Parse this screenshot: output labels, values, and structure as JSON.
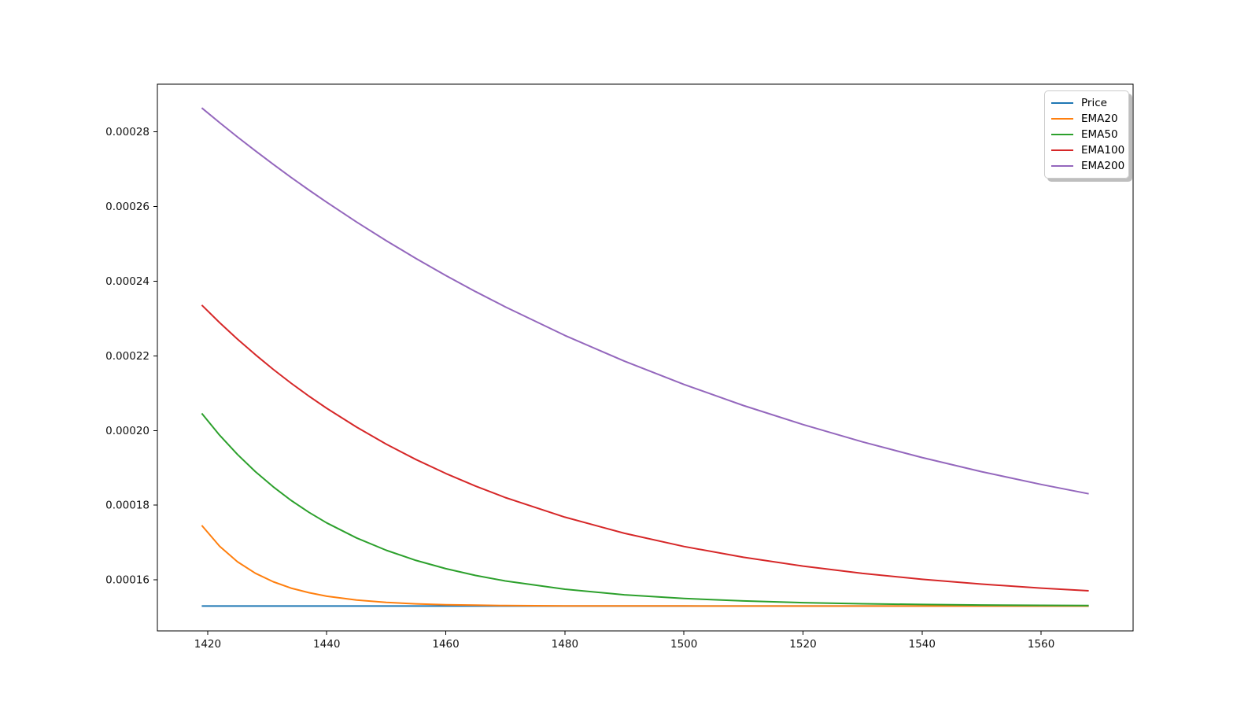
{
  "figure": {
    "background": "#ffffff"
  },
  "axes": {
    "edge_color": "#000000",
    "tick_color": "#000000",
    "tick_label_color": "#111111"
  },
  "legend": {
    "position": "upper-right",
    "border_color": "#cccccc",
    "background": "#ffffff",
    "shadow": true
  },
  "chart_data": {
    "type": "line",
    "title": "",
    "xlabel": "",
    "ylabel": "",
    "grid": false,
    "legend_position": "upper right",
    "xlim": [
      1411.55,
      1575.45
    ],
    "ylim": [
      0.00014634,
      0.00029276
    ],
    "xticks": [
      1420,
      1440,
      1460,
      1480,
      1500,
      1520,
      1540,
      1560
    ],
    "yticks": [
      0.00016,
      0.00018,
      0.0002,
      0.00022,
      0.00024,
      0.00026,
      0.00028
    ],
    "ytick_labels": [
      "0.00016",
      "0.00018",
      "0.00020",
      "0.00022",
      "0.00024",
      "0.00026",
      "0.00028"
    ],
    "x": [
      1419,
      1422,
      1425,
      1428,
      1431,
      1434,
      1437,
      1440,
      1445,
      1450,
      1455,
      1460,
      1465,
      1470,
      1480,
      1490,
      1500,
      1510,
      1520,
      1530,
      1540,
      1550,
      1560,
      1568
    ],
    "series": [
      {
        "name": "Price",
        "color": "#1f77b4",
        "values": [
          0.000153,
          0.000153,
          0.000153,
          0.000153,
          0.000153,
          0.000153,
          0.000153,
          0.000153,
          0.000153,
          0.000153,
          0.000153,
          0.000153,
          0.000153,
          0.000153,
          0.000153,
          0.000153,
          0.000153,
          0.000153,
          0.000153,
          0.000153,
          0.000153,
          0.000153,
          0.000153,
          0.000153
        ]
      },
      {
        "name": "EMA20",
        "color": "#ff7f0e",
        "values": [
          0.0001746,
          0.000169,
          0.00016485,
          0.00016178,
          0.0001595,
          0.00015781,
          0.00015657,
          0.00015564,
          0.0001546,
          0.00015397,
          0.00015359,
          0.00015336,
          0.00015322,
          0.00015313,
          0.00015305,
          0.00015302,
          0.00015301,
          0.000153,
          0.000153,
          0.000153,
          0.000153,
          0.000153,
          0.000153,
          0.000153
        ]
      },
      {
        "name": "EMA50",
        "color": "#2ca02c",
        "values": [
          0.0002046,
          0.00019876,
          0.00019359,
          0.000189,
          0.00018493,
          0.00018132,
          0.00017811,
          0.00017527,
          0.00017124,
          0.00016793,
          0.00016522,
          0.00016301,
          0.00016119,
          0.00015971,
          0.0001575,
          0.00015601,
          0.00015502,
          0.00015436,
          0.00015391,
          0.00015361,
          0.00015341,
          0.00015327,
          0.00015318,
          0.00015313
        ]
      },
      {
        "name": "EMA100",
        "color": "#d62728",
        "values": [
          0.0002336,
          0.00022891,
          0.00022449,
          0.00022032,
          0.0002164,
          0.00021271,
          0.00020923,
          0.00020596,
          0.00020092,
          0.00019636,
          0.00019223,
          0.0001885,
          0.00018512,
          0.00018206,
          0.0001768,
          0.00017248,
          0.00016895,
          0.00016606,
          0.00016369,
          0.00016175,
          0.00016017,
          0.00015887,
          0.0001578,
          0.00015709
        ]
      },
      {
        "name": "EMA200",
        "color": "#9467bd",
        "values": [
          0.0002864,
          0.00028246,
          0.00027863,
          0.00027492,
          0.00027132,
          0.00026782,
          0.00026443,
          0.00026113,
          0.00025586,
          0.00025084,
          0.00024607,
          0.00024153,
          0.00023721,
          0.00023311,
          0.00022548,
          0.00021859,
          0.00021234,
          0.0002067,
          0.00020159,
          0.00019696,
          0.00019278,
          0.00018899,
          0.00018557,
          0.00018306
        ]
      }
    ]
  }
}
